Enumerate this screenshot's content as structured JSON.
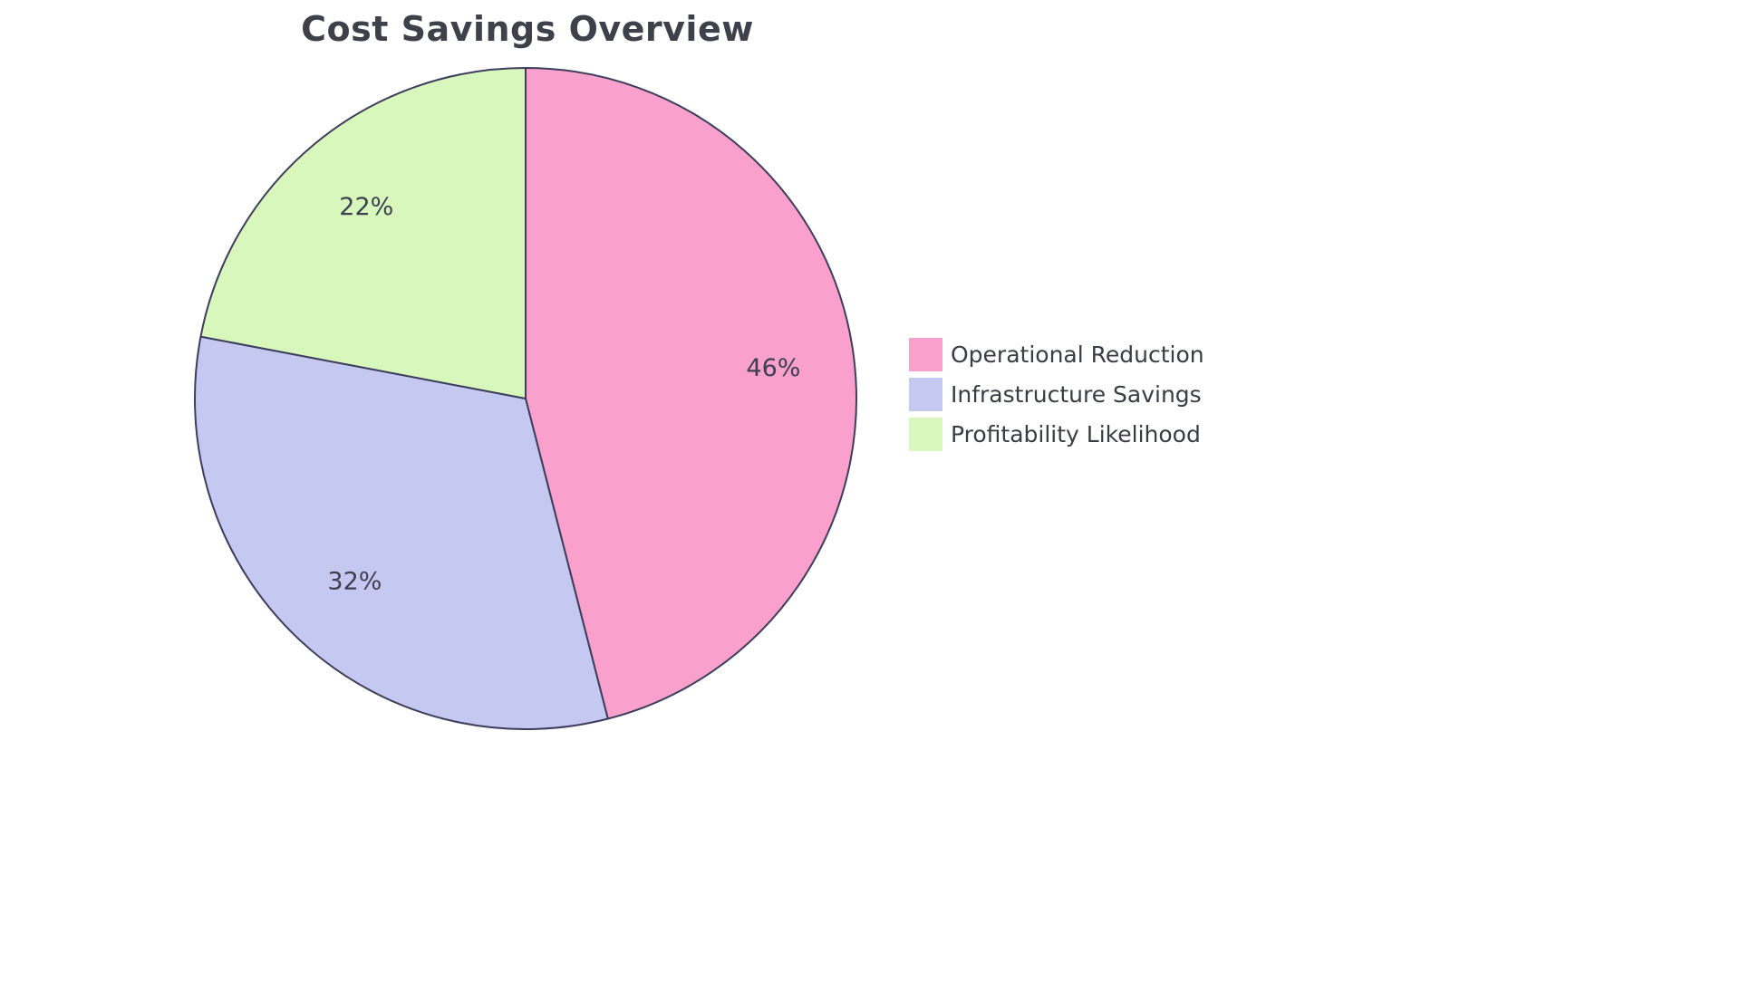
{
  "page": {
    "background": "#FFFFFF"
  },
  "chart_data": {
    "type": "pie",
    "title": "Cost Savings Overview",
    "legend_position": "right",
    "start_angle_deg": 0,
    "direction": "clockwise",
    "stroke_color": "#3D3D5C",
    "stroke_width": 2,
    "label_radius_fraction": 0.755,
    "slices": [
      {
        "label": "Operational Reduction",
        "value": 46,
        "percent_label": "46%",
        "color": "#F9A0CD"
      },
      {
        "label": "Infrastructure Savings",
        "value": 32,
        "percent_label": "32%",
        "color": "#C5C9F1"
      },
      {
        "label": "Profitability Likelihood",
        "value": 22,
        "percent_label": "22%",
        "color": "#D7F7BC"
      }
    ]
  }
}
